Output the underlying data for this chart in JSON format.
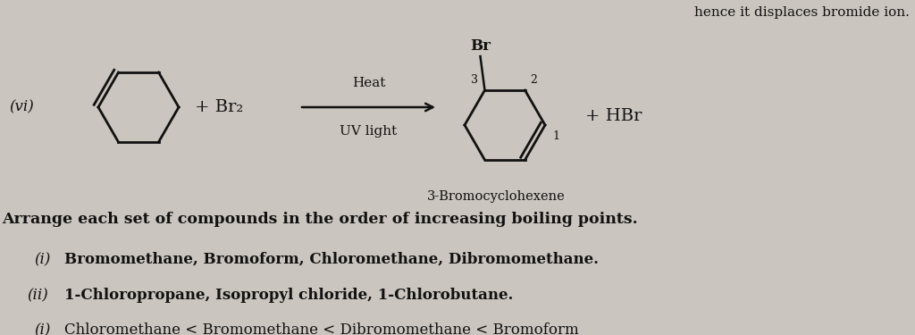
{
  "background_color": "#cac5be",
  "top_right_text": "hence it displaces bromide ion.",
  "label_vi": "(vi)",
  "plus_br2": "+ Br₂",
  "arrow_top": "Heat",
  "arrow_bottom": "UV light",
  "product_label": "3-Bromocyclohexene",
  "plus_hbr": "+ HBr",
  "heading": "Arrange each set of compounds in the order of increasing boiling points.",
  "item_i_label": "(i)",
  "item_i_text": "Bromomethane, Bromoform, Chloromethane, Dibromomethane.",
  "item_ii_label": "(ii)",
  "item_ii_text": "1-Chloropropane, Isopropyl chloride, 1-Chlorobutane.",
  "item_ans_label": "(i)",
  "item_ans_text": "Chloromethane < Bromomethane < Dibromomethane < Bromoform",
  "font_color": "#111111",
  "hexagon_color": "#111111",
  "arrow_color": "#111111"
}
